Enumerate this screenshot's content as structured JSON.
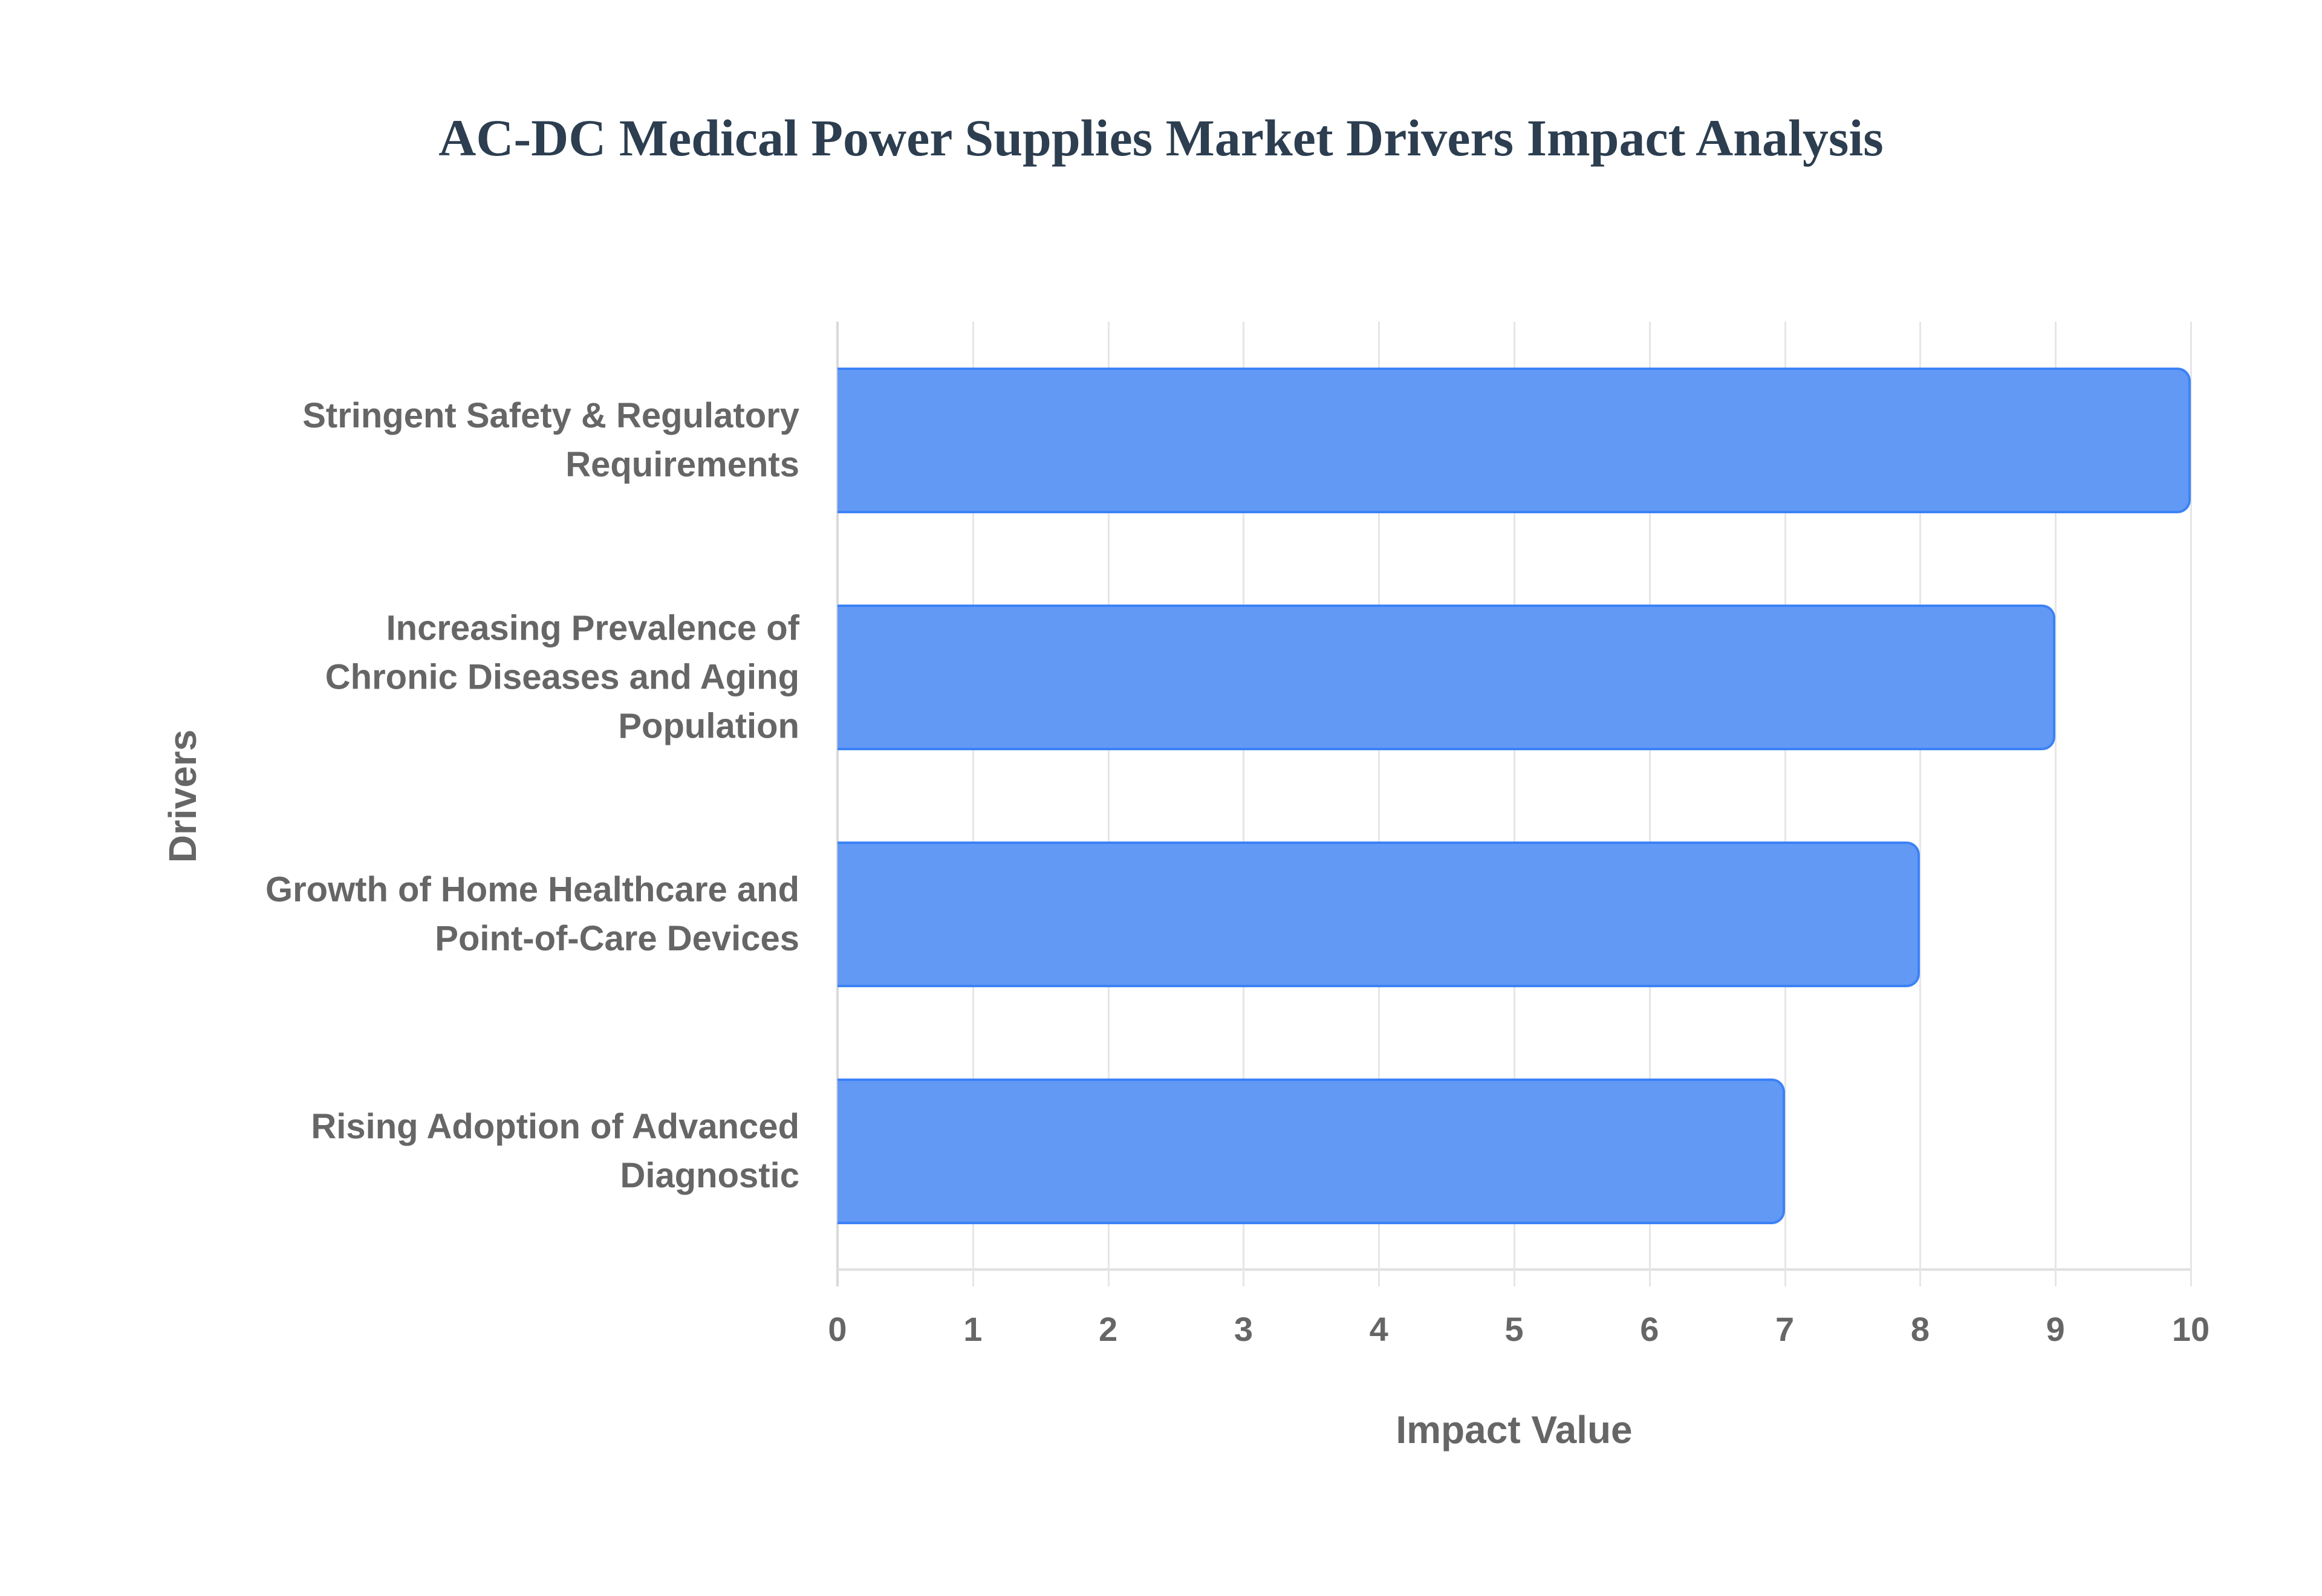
{
  "title": "AC-DC Medical Power Supplies Market Drivers Impact Analysis",
  "x_axis": {
    "label": "Impact Value",
    "ticks": [
      "0",
      "1",
      "2",
      "3",
      "4",
      "5",
      "6",
      "7",
      "8",
      "9",
      "10"
    ]
  },
  "y_axis": {
    "label": "Drivers"
  },
  "categories": [
    {
      "lines": [
        "Stringent Safety & Regulatory",
        "Requirements"
      ],
      "value": 10
    },
    {
      "lines": [
        "Increasing Prevalence of",
        "Chronic Diseases and Aging",
        "Population"
      ],
      "value": 9
    },
    {
      "lines": [
        "Growth of Home Healthcare and",
        "Point-of-Care Devices"
      ],
      "value": 8
    },
    {
      "lines": [
        "Rising Adoption of Advanced",
        "Diagnostic"
      ],
      "value": 7
    }
  ],
  "colors": {
    "bar_fill": "#6199f5",
    "bar_border": "#3b82f6",
    "title": "#2c3e50",
    "axis_text": "#666666",
    "grid": "#e6e6e6"
  },
  "chart_data": {
    "type": "bar",
    "orientation": "horizontal",
    "title": "AC-DC Medical Power Supplies Market Drivers Impact Analysis",
    "categories": [
      "Stringent Safety & Regulatory Requirements",
      "Increasing Prevalence of Chronic Diseases and Aging Population",
      "Growth of Home Healthcare and Point-of-Care Devices",
      "Rising Adoption of Advanced Diagnostic"
    ],
    "values": [
      10,
      9,
      8,
      7
    ],
    "xlabel": "Impact Value",
    "ylabel": "Drivers",
    "xlim": [
      0,
      10
    ],
    "xticks": [
      0,
      1,
      2,
      3,
      4,
      5,
      6,
      7,
      8,
      9,
      10
    ],
    "grid": {
      "x": true,
      "y": false
    },
    "legend": null
  }
}
